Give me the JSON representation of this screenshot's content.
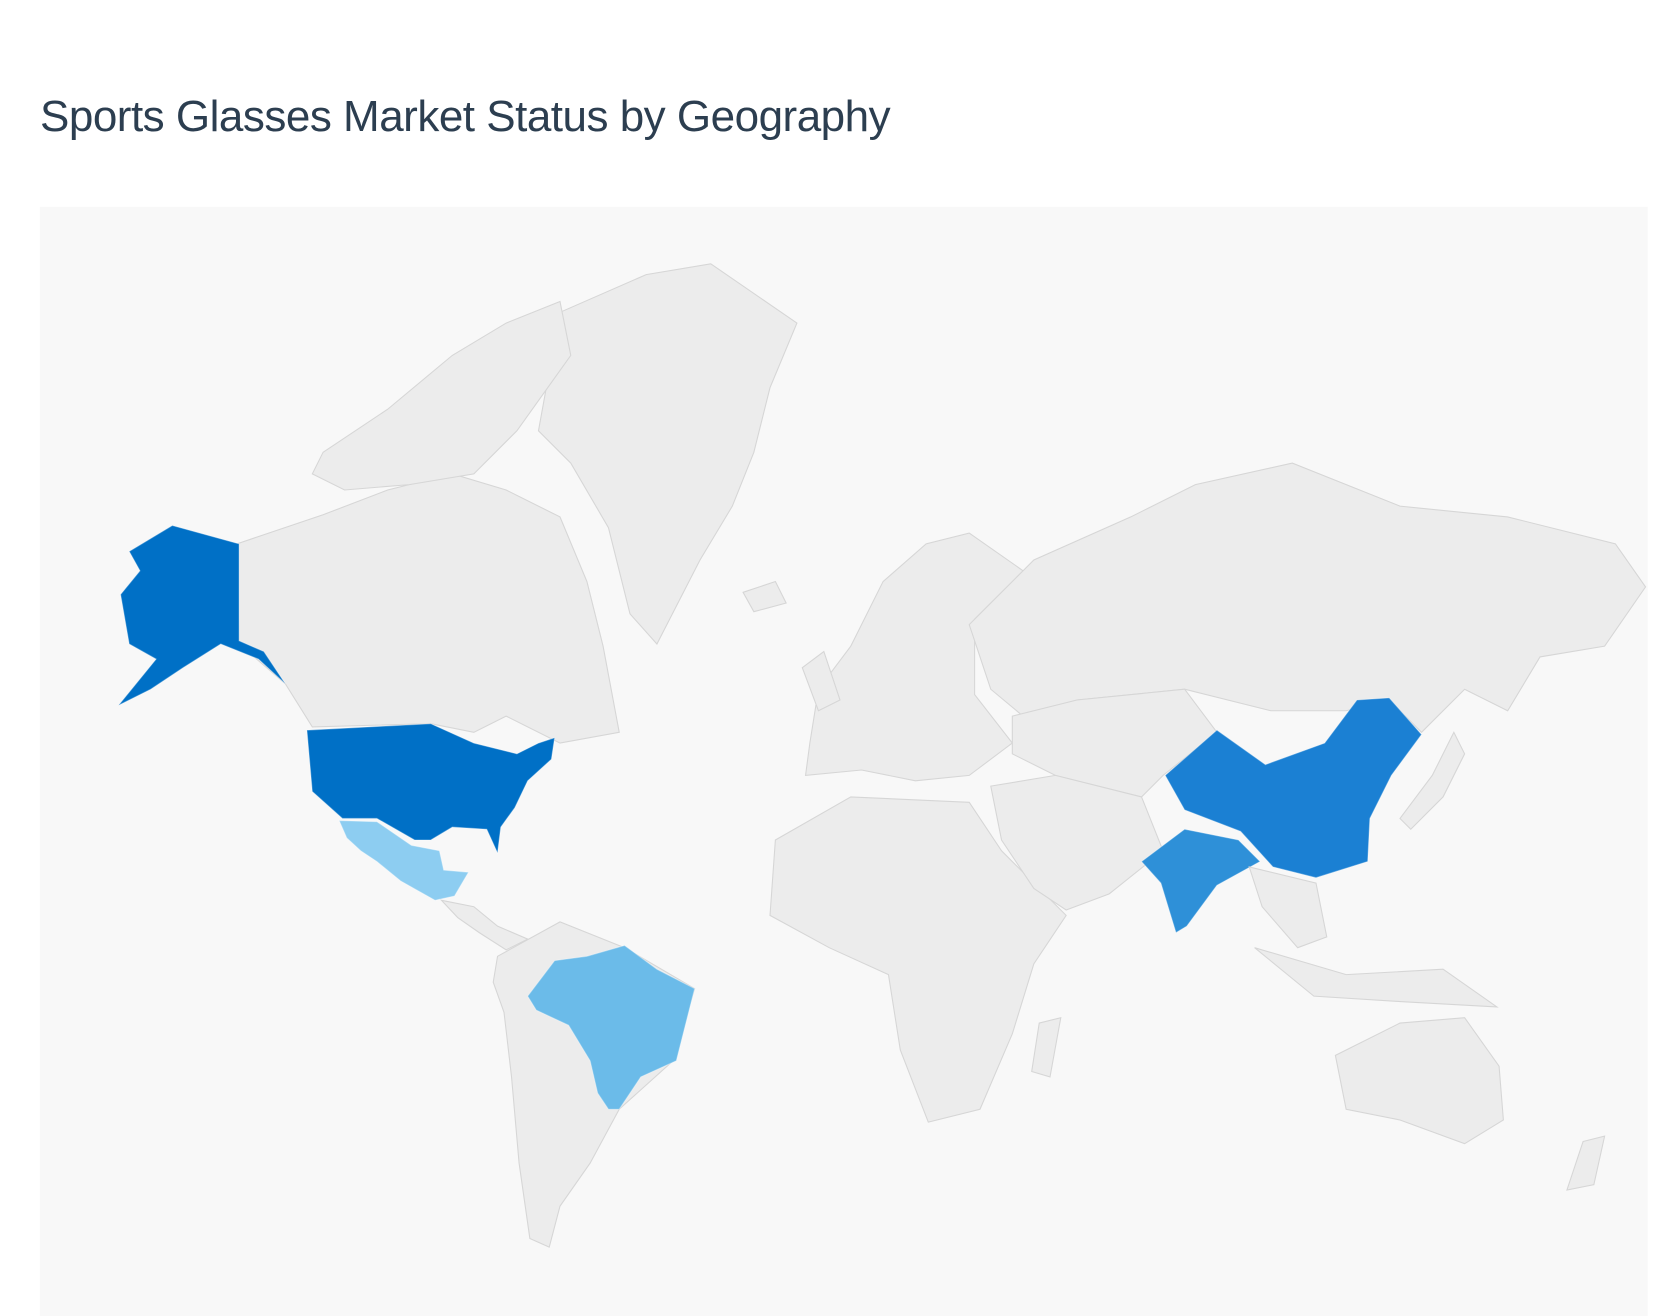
{
  "title": "Sports Glasses Market Status by Geography",
  "chart_data": {
    "type": "choropleth-map",
    "title": "Sports Glasses Market Status by Geography",
    "background_color": "#f8f8f8",
    "default_land_color": "#ececec",
    "border_color": "#d6d6d6",
    "highlighted_regions": [
      {
        "region": "United States",
        "color": "#0070c6",
        "level": "highest"
      },
      {
        "region": "China",
        "color": "#1b80d3",
        "level": "high"
      },
      {
        "region": "India",
        "color": "#2e90d8",
        "level": "high"
      },
      {
        "region": "Brazil",
        "color": "#6bbbe9",
        "level": "medium"
      },
      {
        "region": "Mexico",
        "color": "#8dcdf1",
        "level": "lower"
      }
    ]
  }
}
